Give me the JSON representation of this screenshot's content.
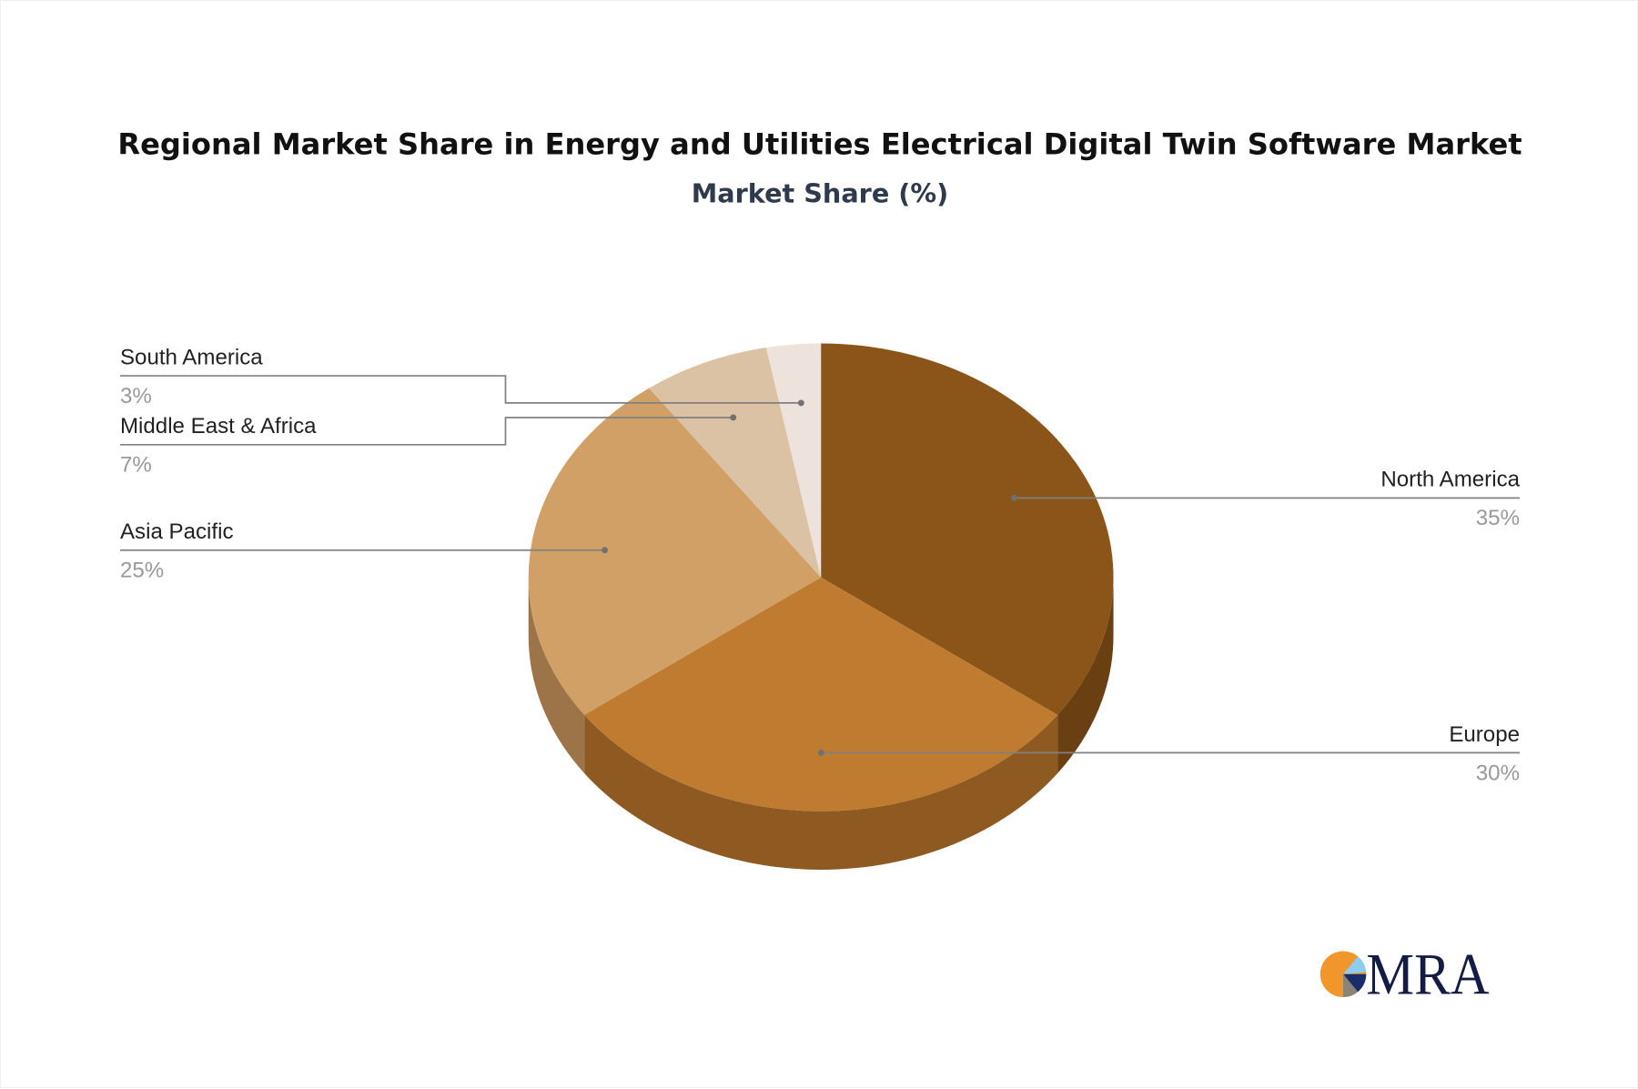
{
  "chart_data": {
    "type": "pie",
    "style": "3d",
    "title": "Regional Market Share in Energy and Utilities Electrical Digital Twin Software Market",
    "subtitle": "Market Share (%)",
    "slices": [
      {
        "label": "North America",
        "value": 35,
        "display": "35%",
        "color": "#8b5419",
        "side_color": "#6a3f12"
      },
      {
        "label": "Europe",
        "value": 30,
        "display": "30%",
        "color": "#bf7b2f",
        "side_color": "#8e5a22"
      },
      {
        "label": "Asia Pacific",
        "value": 25,
        "display": "25%",
        "color": "#d1a066",
        "side_color": "#9d7448"
      },
      {
        "label": "Middle East & Africa",
        "value": 7,
        "display": "7%",
        "color": "#dcc2a5",
        "side_color": "#a89177"
      },
      {
        "label": "South America",
        "value": 3,
        "display": "3%",
        "color": "#ede3dc",
        "side_color": "#b5aca5"
      }
    ]
  },
  "logo": {
    "text": "MRA",
    "colors": {
      "orange": "#f0962a",
      "light_blue": "#8fcdf0",
      "navy": "#1a2d6b",
      "gray": "#8a8478",
      "text": "#141c44"
    }
  }
}
